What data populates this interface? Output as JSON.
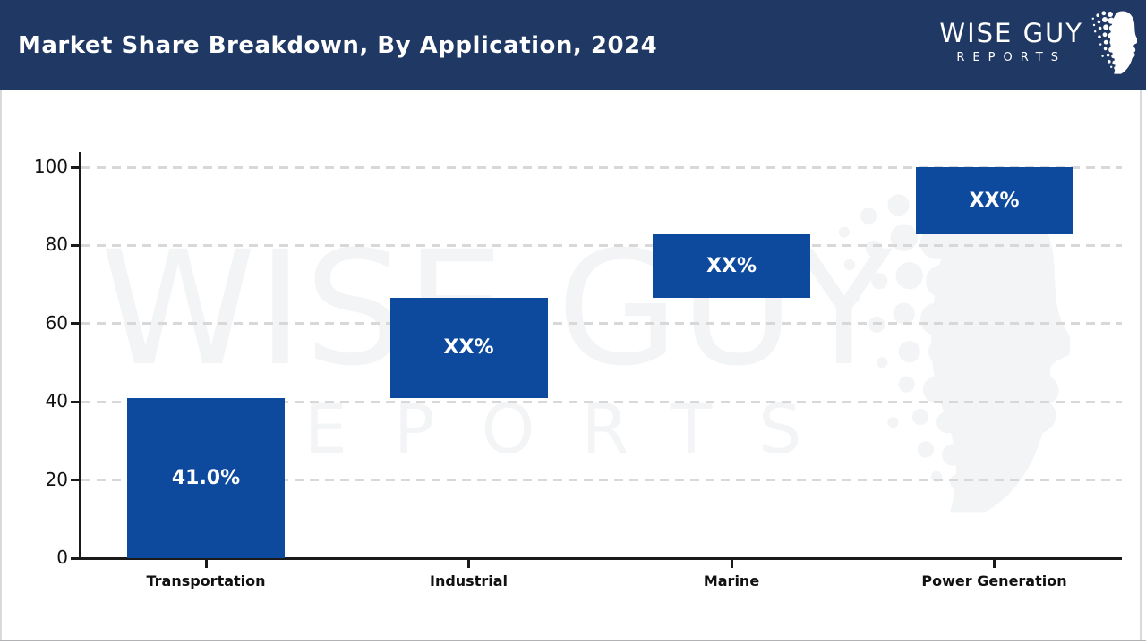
{
  "header": {
    "title": "Market Share Breakdown, By Application, 2024",
    "bg_color": "#203864",
    "logo": {
      "line1": "WISE GUY",
      "line2": "REPORTS"
    }
  },
  "watermark": {
    "line1": "WISE GUY",
    "line2": "REPORTS"
  },
  "chart_data": {
    "type": "bar",
    "subtype": "waterfall",
    "title": "Market Share Breakdown, By Application, 2024",
    "categories": [
      "Transportation",
      "Industrial",
      "Marine",
      "Power Generation"
    ],
    "series": [
      {
        "name": "Transportation",
        "start": 0,
        "end": 41.0,
        "value": 41.0,
        "label": "41.0%"
      },
      {
        "name": "Industrial",
        "start": 41.0,
        "end": 66.6,
        "value": 25.6,
        "label": "XX%"
      },
      {
        "name": "Marine",
        "start": 66.6,
        "end": 82.8,
        "value": 16.2,
        "label": "XX%"
      },
      {
        "name": "Power Generation",
        "start": 82.8,
        "end": 100.0,
        "value": 17.2,
        "label": "XX%"
      }
    ],
    "ylim": [
      0,
      100
    ],
    "yticks": [
      0,
      20,
      40,
      60,
      80,
      100
    ],
    "grid": "horizontal-dashed",
    "legend": "none",
    "bar_color": "#0d4a9e",
    "bar_label_color": "#ffffff",
    "axis_color": "#1a1a1a",
    "grid_color": "#d8d8d8",
    "watermark_color": "#f3f4f6"
  }
}
